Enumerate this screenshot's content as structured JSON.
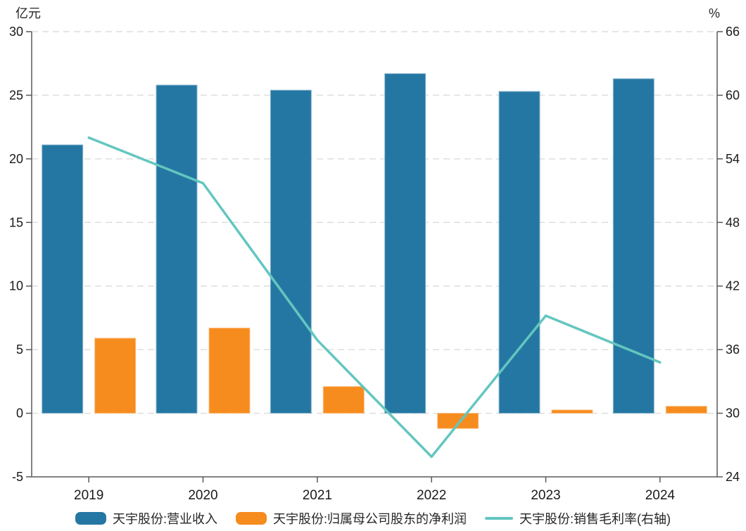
{
  "axis_titles": {
    "left": "亿元",
    "right": "%"
  },
  "chart_data": {
    "type": "combo-bar-line",
    "categories": [
      "2019",
      "2020",
      "2021",
      "2022",
      "2023",
      "2024"
    ],
    "series": [
      {
        "name": "天宇股份:营业收入",
        "type": "bar",
        "axis": "left",
        "color": "#2577A3",
        "edge_color": "#8FB9D0",
        "values": [
          21.1,
          25.8,
          25.4,
          26.7,
          25.3,
          26.3
        ]
      },
      {
        "name": "天宇股份:归属母公司股东的净利润",
        "type": "bar",
        "axis": "left",
        "color": "#F68B1E",
        "edge_color": "#FAC084",
        "values": [
          5.9,
          6.7,
          2.1,
          -1.2,
          0.26,
          0.55
        ]
      },
      {
        "name": "天宇股份:销售毛利率(右轴)",
        "type": "line",
        "axis": "right",
        "color": "#63C6C0",
        "values": [
          56.0,
          51.7,
          36.9,
          25.9,
          39.2,
          34.8
        ]
      }
    ],
    "left_axis": {
      "title": "亿元",
      "min": -5,
      "max": 30,
      "ticks": [
        30,
        25,
        20,
        15,
        10,
        5,
        0,
        -5
      ]
    },
    "right_axis": {
      "title": "%",
      "min": 24,
      "max": 66,
      "ticks": [
        66,
        60,
        54,
        48,
        42,
        36,
        30,
        24
      ]
    },
    "grid": "dashed-horizontal",
    "legend_position": "bottom",
    "colors": {
      "axis_line": "#595959",
      "gridline": "#dedede",
      "tick_label": "#1a1a1a"
    }
  }
}
